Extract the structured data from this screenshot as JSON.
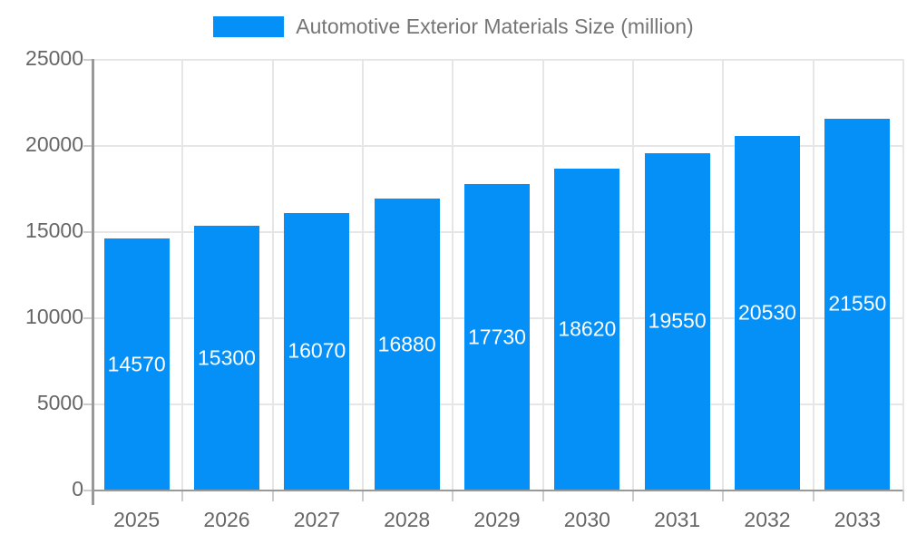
{
  "page": {
    "background": "#ffffff"
  },
  "legend": {
    "label": "Automotive Exterior Materials Size (million)",
    "position": "top-center"
  },
  "chart_data": {
    "type": "bar",
    "title": "",
    "xlabel": "",
    "ylabel": "",
    "categories": [
      "2025",
      "2026",
      "2027",
      "2028",
      "2029",
      "2030",
      "2031",
      "2032",
      "2033"
    ],
    "values": [
      14570,
      15300,
      16070,
      16880,
      17730,
      18620,
      19550,
      20530,
      21550
    ],
    "series": [
      {
        "name": "Automotive Exterior Materials Size (million)",
        "values": [
          14570,
          15300,
          16070,
          16880,
          17730,
          18620,
          19550,
          20530,
          21550
        ]
      }
    ],
    "yticks": [
      0,
      5000,
      10000,
      15000,
      20000,
      25000
    ],
    "ylim": [
      0,
      25000
    ],
    "grid": true,
    "legend_position": "top",
    "bar_labels_inside": true,
    "colors": {
      "bar": "#0590F8",
      "bar_label_text": "#ffffff",
      "grid_line": "#e6e6e6",
      "axis_line": "#999999",
      "tick_mark": "#cccccc",
      "axis_text": "#666666",
      "legend_text": "#757575"
    }
  }
}
